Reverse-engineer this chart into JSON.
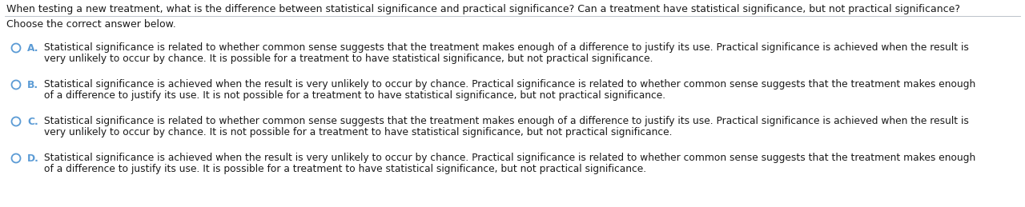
{
  "background_color": "#ffffff",
  "top_question": "When testing a new treatment, what is the difference between statistical significance and practical significance? Can a treatment have statistical significance, but not practical significance?",
  "subheading": "Choose the correct answer below.",
  "options": [
    {
      "label": "A.",
      "text_line1": "Statistical significance is related to whether common sense suggests that the treatment makes enough of a difference to justify its use. Practical significance is achieved when the result is",
      "text_line2": "very unlikely to occur by chance. It is possible for a treatment to have statistical significance, but not practical significance."
    },
    {
      "label": "B.",
      "text_line1": "Statistical significance is achieved when the result is very unlikely to occur by chance. Practical significance is related to whether common sense suggests that the treatment makes enough",
      "text_line2": "of a difference to justify its use. It is not possible for a treatment to have statistical significance, but not practical significance."
    },
    {
      "label": "C.",
      "text_line1": "Statistical significance is related to whether common sense suggests that the treatment makes enough of a difference to justify its use. Practical significance is achieved when the result is",
      "text_line2": "very unlikely to occur by chance. It is not possible for a treatment to have statistical significance, but not practical significance."
    },
    {
      "label": "D.",
      "text_line1": "Statistical significance is achieved when the result is very unlikely to occur by chance. Practical significance is related to whether common sense suggests that the treatment makes enough",
      "text_line2": "of a difference to justify its use. It is possible for a treatment to have statistical significance, but not practical significance."
    }
  ],
  "circle_color": "#5b9bd5",
  "text_color": "#1a1a1a",
  "label_color": "#5b9bd5",
  "sep_line_color": "#b0b8c0",
  "font_size_question": 9.0,
  "font_size_subheading": 9.0,
  "font_size_options": 8.8,
  "fig_width": 12.8,
  "fig_height": 2.59,
  "dpi": 100
}
